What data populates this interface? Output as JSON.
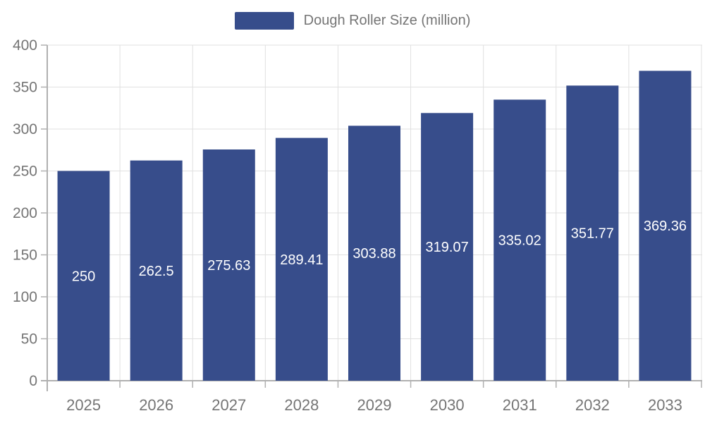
{
  "legend": {
    "label": "Dough Roller Size (million)"
  },
  "chart_data": {
    "type": "bar",
    "title": "Dough Roller Size (million)",
    "series_name": "Dough Roller Size (million)",
    "categories": [
      "2025",
      "2026",
      "2027",
      "2028",
      "2029",
      "2030",
      "2031",
      "2032",
      "2033"
    ],
    "values": [
      250,
      262.5,
      275.63,
      289.41,
      303.88,
      319.07,
      335.02,
      351.77,
      369.36
    ],
    "value_labels": [
      "250",
      "262.5",
      "275.63",
      "289.41",
      "303.88",
      "319.07",
      "335.02",
      "351.77",
      "369.36"
    ],
    "xlabel": "",
    "ylabel": "",
    "ylim": [
      0,
      400
    ],
    "ytick_step": 50,
    "yticks": [
      0,
      50,
      100,
      150,
      200,
      250,
      300,
      350,
      400
    ],
    "grid": true,
    "legend_position": "top",
    "bar_color": "#374d8b",
    "bar_label_color": "#ffffff",
    "axis_text_color": "#757575",
    "grid_color": "#e0e0e0",
    "axis_line_color": "#b0b0b0"
  }
}
